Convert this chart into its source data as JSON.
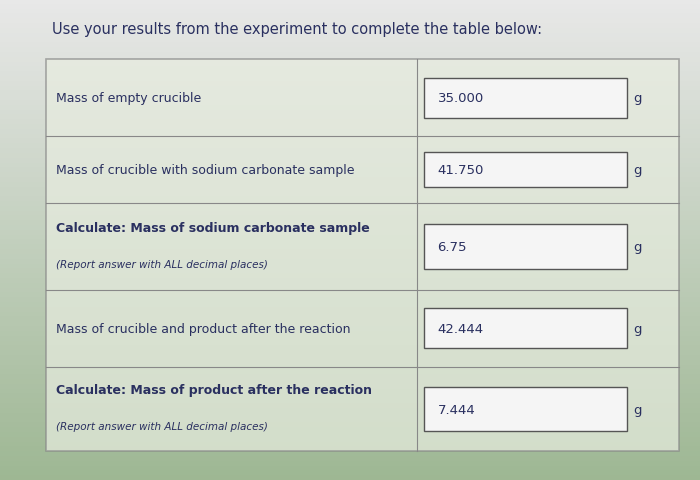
{
  "title": "Use your results from the experiment to complete the table below:",
  "bg_top_color": "#e8e8e8",
  "bg_bottom_color": "#b8c8a8",
  "table_bg": "#e8ede0",
  "box_bg": "#f5f5f5",
  "border_color": "#888888",
  "text_color": "#2a3060",
  "rows": [
    {
      "label": "Mass of empty crucible",
      "label2": "",
      "bold": false,
      "value": "35.000",
      "unit": "g",
      "shared_below": false
    },
    {
      "label": "Mass of crucible with sodium carbonate sample",
      "label2": "",
      "bold": false,
      "value": "41.750",
      "unit": "g",
      "shared_below": false
    },
    {
      "label": "Calculate: Mass of sodium carbonate sample",
      "label2": "(Report answer with ALL decimal places)",
      "bold": true,
      "value": "6.75",
      "unit": "g",
      "shared_below": false
    },
    {
      "label": "Mass of crucible and product after the reaction",
      "label2": "",
      "bold": false,
      "value": "42.444",
      "unit": "g",
      "shared_below": true
    },
    {
      "label": "Calculate: Mass of product after the reaction",
      "label2": "(Report answer with ALL decimal places)",
      "bold": true,
      "value": "7.444",
      "unit": "g",
      "shared_below": false
    }
  ],
  "figsize": [
    7.0,
    4.81
  ],
  "dpi": 100
}
